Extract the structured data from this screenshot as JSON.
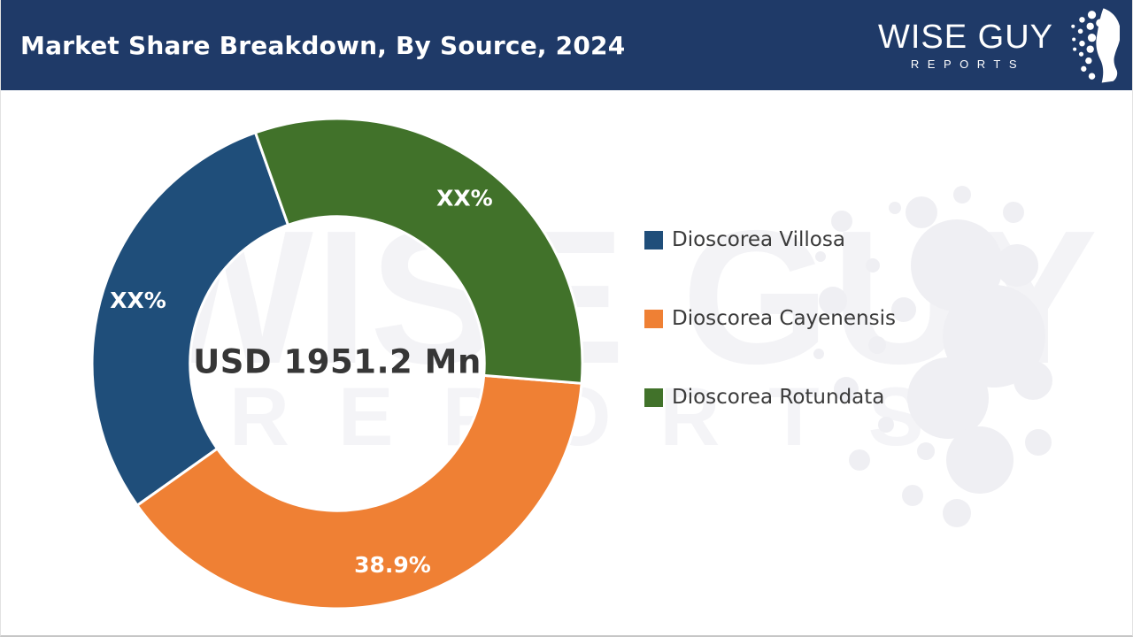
{
  "header": {
    "title": "Market Share Breakdown, By Source, 2024",
    "bg_color": "#1F3A68",
    "logo": {
      "line1": "WISE GUY",
      "line2": "REPORTS"
    }
  },
  "watermark": {
    "line1": "WISE GUY",
    "line2": "REPORTS"
  },
  "chart_data": {
    "type": "pie",
    "subtype": "donut",
    "title": "Market Share Breakdown, By Source, 2024",
    "center_label": "USD 1951.2 Mn",
    "start_angle_deg": 109.5,
    "direction": "counterclockwise",
    "inner_radius_frac": 0.6,
    "legend_position": "right",
    "slices": [
      {
        "label": "Dioscorea Villosa",
        "value_pct": 29.4,
        "display_label": "XX%",
        "color": "#1F4E7A"
      },
      {
        "label": "Dioscorea Cayenensis",
        "value_pct": 38.9,
        "display_label": "38.9%",
        "color": "#EF8034"
      },
      {
        "label": "Dioscorea Rotundata",
        "value_pct": 31.7,
        "display_label": "XX%",
        "color": "#41722A"
      }
    ],
    "slice_label_color": "#FFFFFF",
    "separator_color": "#FFFFFF"
  }
}
